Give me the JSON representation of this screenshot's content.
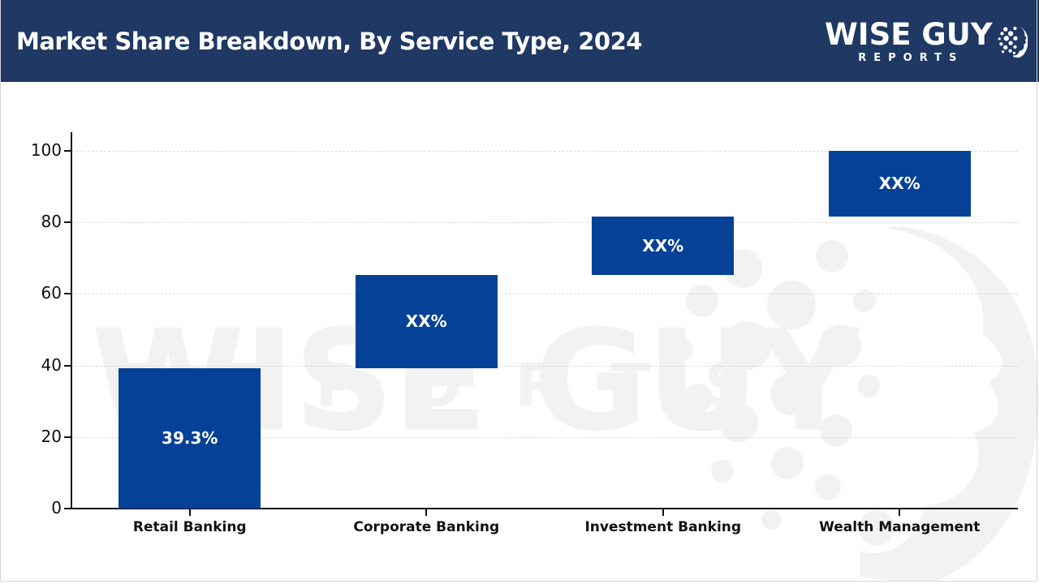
{
  "header": {
    "title": "Market Share Breakdown, By Service Type, 2024",
    "logo": {
      "line1": "WISE GUY",
      "line2": "REPORTS"
    }
  },
  "watermark": {
    "line1": "WISE GUY",
    "line2": "REPORTS"
  },
  "colors": {
    "header_bg": "#1f3864",
    "bar_blue": "#054196",
    "grid_gray": "#dcdcdc",
    "watermark_gray": "#f2f2f2",
    "text_black": "#111111",
    "text_white": "#ffffff"
  },
  "chart_data": {
    "type": "bar",
    "subtype": "waterfall",
    "title": "Market Share Breakdown, By Service Type, 2024",
    "categories": [
      "Retail Banking",
      "Corporate Banking",
      "Investment Banking",
      "Wealth Management"
    ],
    "segments": [
      {
        "category": "Retail Banking",
        "start": 0,
        "end": 39.3,
        "label": "39.3%"
      },
      {
        "category": "Corporate Banking",
        "start": 39.3,
        "end": 65.3,
        "label": "XX%"
      },
      {
        "category": "Investment Banking",
        "start": 65.3,
        "end": 81.7,
        "label": "XX%"
      },
      {
        "category": "Wealth Management",
        "start": 81.7,
        "end": 100,
        "label": "XX%"
      }
    ],
    "yticks": [
      0,
      20,
      40,
      60,
      80,
      100
    ],
    "ylim": [
      0,
      105
    ],
    "xlabel": "",
    "ylabel": "",
    "grid": "horizontal-dashed",
    "legend": "none",
    "bar_color": "#054196",
    "value_label_color": "#ffffff"
  }
}
